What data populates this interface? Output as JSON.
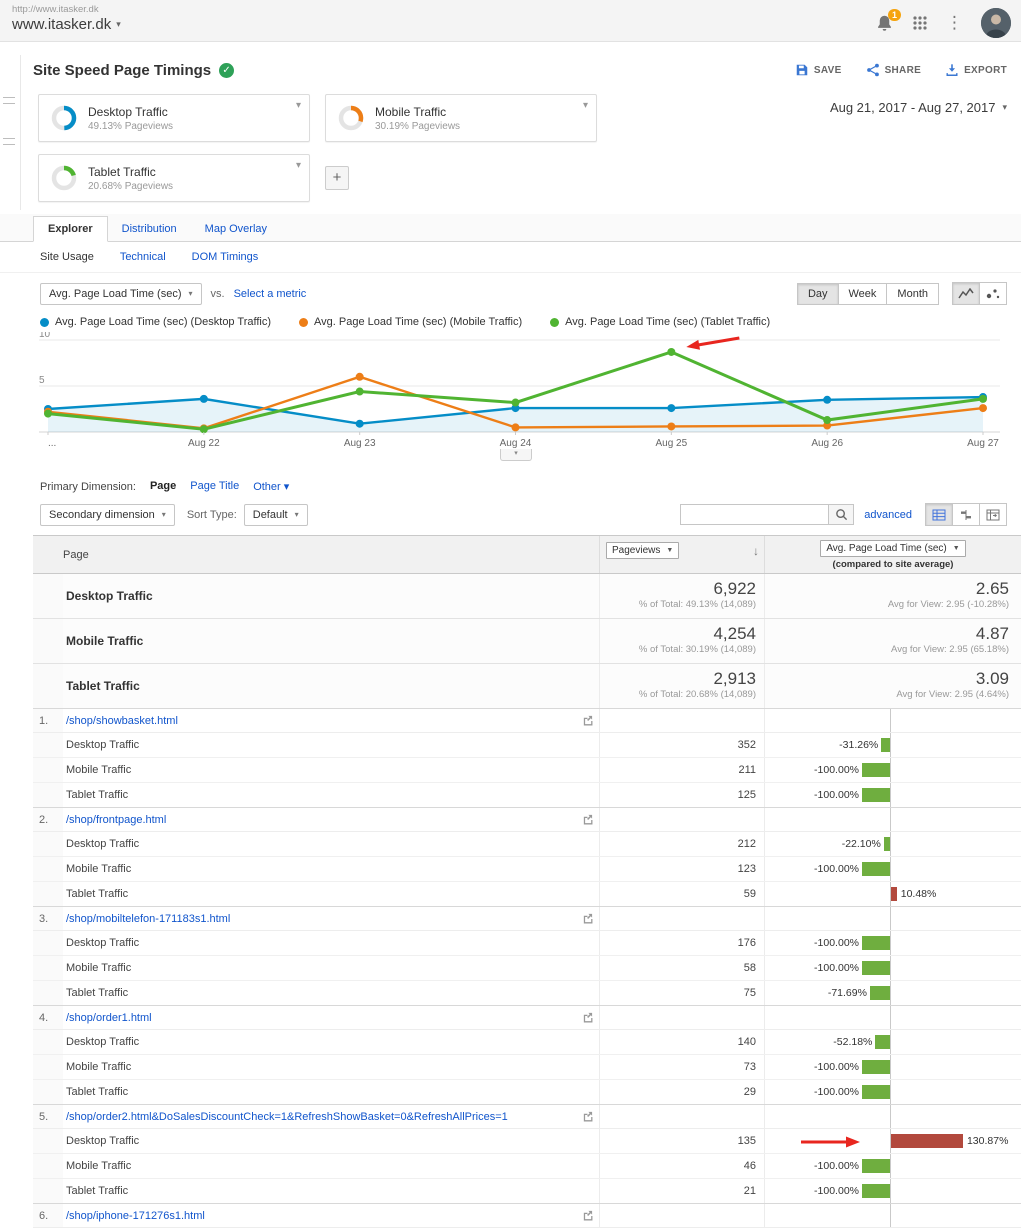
{
  "topbar": {
    "url": "http://www.itasker.dk",
    "site_name": "www.itasker.dk",
    "notification_count": "1"
  },
  "header": {
    "title": "Site Speed Page Timings",
    "save_label": "SAVE",
    "share_label": "SHARE",
    "export_label": "EXPORT"
  },
  "segments": {
    "cards": [
      {
        "name": "Desktop Traffic",
        "detail": "49.13% Pageviews",
        "color": "#058dc7",
        "fraction": 0.4913
      },
      {
        "name": "Mobile Traffic",
        "detail": "30.19% Pageviews",
        "color": "#ed7e17",
        "fraction": 0.3019
      },
      {
        "name": "Tablet Traffic",
        "detail": "20.68% Pageviews",
        "color": "#50b432",
        "fraction": 0.2068
      }
    ],
    "add_label": "+"
  },
  "date_range": "Aug 21, 2017 - Aug 27, 2017",
  "tabs": [
    {
      "label": "Explorer",
      "active": true
    },
    {
      "label": "Distribution",
      "active": false
    },
    {
      "label": "Map Overlay",
      "active": false
    }
  ],
  "subtabs": [
    {
      "label": "Site Usage",
      "active": true
    },
    {
      "label": "Technical",
      "active": false
    },
    {
      "label": "DOM Timings",
      "active": false
    }
  ],
  "metric_bar": {
    "metric_button": "Avg. Page Load Time (sec)",
    "vs_label": "vs.",
    "select_metric": "Select a metric",
    "granularity": [
      {
        "label": "Day",
        "active": true
      },
      {
        "label": "Week",
        "active": false
      },
      {
        "label": "Month",
        "active": false
      }
    ]
  },
  "chart_data": {
    "type": "line",
    "x": [
      "Aug 21",
      "Aug 22",
      "Aug 23",
      "Aug 24",
      "Aug 25",
      "Aug 26",
      "Aug 27"
    ],
    "x_tick_labels": [
      "...",
      "Aug 22",
      "Aug 23",
      "Aug 24",
      "Aug 25",
      "Aug 26",
      "Aug 27"
    ],
    "ylim": [
      0,
      10
    ],
    "yticks": [
      5,
      10
    ],
    "legend_position": "top",
    "grid": true,
    "series": [
      {
        "name": "Avg. Page Load Time (sec) (Desktop Traffic)",
        "color": "#058dc7",
        "area": true,
        "values": [
          2.5,
          3.6,
          0.9,
          2.6,
          2.6,
          3.5,
          3.8
        ]
      },
      {
        "name": "Avg. Page Load Time (sec) (Mobile Traffic)",
        "color": "#ed7e17",
        "area": false,
        "values": [
          2.2,
          0.4,
          6.0,
          0.5,
          0.6,
          0.7,
          2.6
        ]
      },
      {
        "name": "Avg. Page Load Time (sec) (Tablet Traffic)",
        "color": "#50b432",
        "area": false,
        "values": [
          2.0,
          0.3,
          4.4,
          3.2,
          8.7,
          1.3,
          3.6
        ]
      }
    ],
    "annotation": {
      "series": 2,
      "point": 4,
      "type": "arrow"
    }
  },
  "primary_dimension": {
    "label": "Primary Dimension:",
    "options": [
      {
        "label": "Page",
        "active": true,
        "caret": false
      },
      {
        "label": "Page Title",
        "active": false,
        "caret": false
      },
      {
        "label": "Other",
        "active": false,
        "caret": true
      }
    ]
  },
  "table_toolbar": {
    "secondary_dimension": "Secondary dimension",
    "sort_type_label": "Sort Type:",
    "sort_type_value": "Default",
    "search_value": "",
    "search_placeholder": "",
    "advanced_label": "advanced"
  },
  "table": {
    "columns": {
      "page": "Page",
      "pageviews": "Pageviews",
      "metric": "Avg. Page Load Time (sec)",
      "metric_sub": "(compared to site average)"
    },
    "bar_colors": {
      "negative": "#6fae3f",
      "positive": "#b2493d"
    },
    "summary_rows": [
      {
        "name": "Desktop Traffic",
        "pageviews": "6,922",
        "pageviews_sub": "% of Total: 49.13% (14,089)",
        "metric": "2.65",
        "metric_sub": "Avg for View: 2.95 (-10.28%)"
      },
      {
        "name": "Mobile Traffic",
        "pageviews": "4,254",
        "pageviews_sub": "% of Total: 30.19% (14,089)",
        "metric": "4.87",
        "metric_sub": "Avg for View: 2.95 (65.18%)"
      },
      {
        "name": "Tablet Traffic",
        "pageviews": "2,913",
        "pageviews_sub": "% of Total: 20.68% (14,089)",
        "metric": "3.09",
        "metric_sub": "Avg for View: 2.95 (4.64%)"
      }
    ],
    "rows": [
      {
        "index": "1.",
        "url": "/shop/showbasket.html",
        "segments": [
          {
            "name": "Desktop Traffic",
            "pageviews": "352",
            "pct": -31.26,
            "label": "-31.26%"
          },
          {
            "name": "Mobile Traffic",
            "pageviews": "211",
            "pct": -100.0,
            "label": "-100.00%"
          },
          {
            "name": "Tablet Traffic",
            "pageviews": "125",
            "pct": -100.0,
            "label": "-100.00%"
          }
        ]
      },
      {
        "index": "2.",
        "url": "/shop/frontpage.html",
        "segments": [
          {
            "name": "Desktop Traffic",
            "pageviews": "212",
            "pct": -22.1,
            "label": "-22.10%"
          },
          {
            "name": "Mobile Traffic",
            "pageviews": "123",
            "pct": -100.0,
            "label": "-100.00%"
          },
          {
            "name": "Tablet Traffic",
            "pageviews": "59",
            "pct": 10.48,
            "label": "10.48%"
          }
        ]
      },
      {
        "index": "3.",
        "url": "/shop/mobiltelefon-171183s1.html",
        "segments": [
          {
            "name": "Desktop Traffic",
            "pageviews": "176",
            "pct": -100.0,
            "label": "-100.00%"
          },
          {
            "name": "Mobile Traffic",
            "pageviews": "58",
            "pct": -100.0,
            "label": "-100.00%"
          },
          {
            "name": "Tablet Traffic",
            "pageviews": "75",
            "pct": -71.69,
            "label": "-71.69%"
          }
        ]
      },
      {
        "index": "4.",
        "url": "/shop/order1.html",
        "segments": [
          {
            "name": "Desktop Traffic",
            "pageviews": "140",
            "pct": -52.18,
            "label": "-52.18%"
          },
          {
            "name": "Mobile Traffic",
            "pageviews": "73",
            "pct": -100.0,
            "label": "-100.00%"
          },
          {
            "name": "Tablet Traffic",
            "pageviews": "29",
            "pct": -100.0,
            "label": "-100.00%"
          }
        ]
      },
      {
        "index": "5.",
        "url": "/shop/order2.html&DoSalesDiscountCheck=1&RefreshShowBasket=0&RefreshAllPrices=1",
        "segments": [
          {
            "name": "Desktop Traffic",
            "pageviews": "135",
            "pct": 130.87,
            "label": "130.87%",
            "arrow": true
          },
          {
            "name": "Mobile Traffic",
            "pageviews": "46",
            "pct": -100.0,
            "label": "-100.00%"
          },
          {
            "name": "Tablet Traffic",
            "pageviews": "21",
            "pct": -100.0,
            "label": "-100.00%"
          }
        ]
      },
      {
        "index": "6.",
        "url": "/shop/iphone-171276s1.html",
        "segments": []
      }
    ]
  },
  "annotations": {
    "arrow_color": "#e8261f"
  }
}
